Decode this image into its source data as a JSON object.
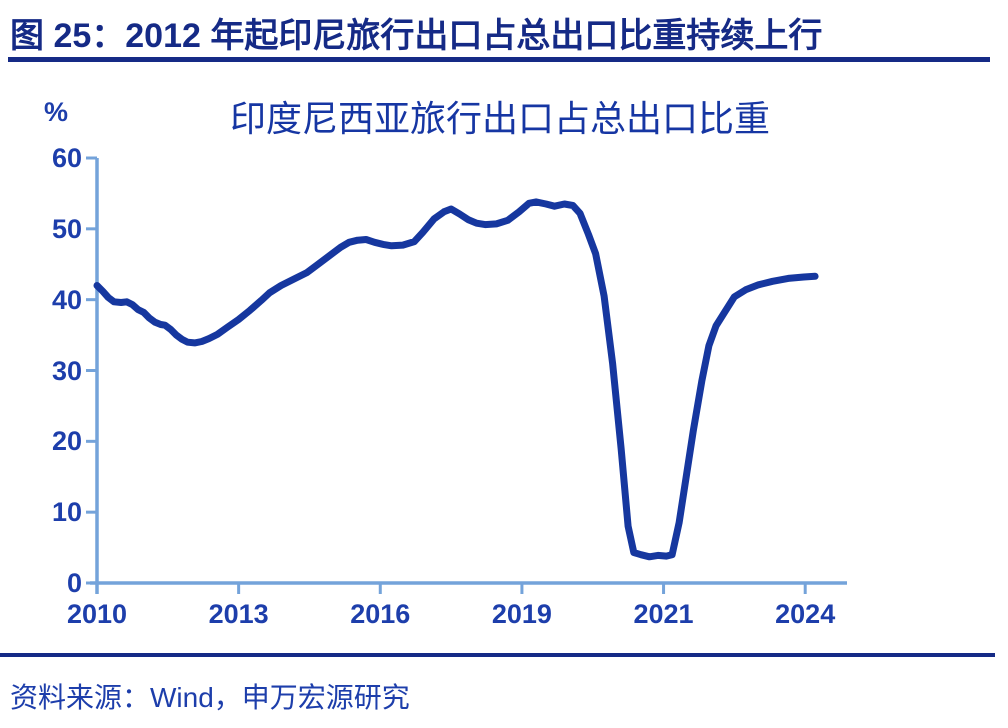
{
  "page": {
    "figure_label": "图 25：2012 年起印尼旅行出口占总出口比重持续上行",
    "source_text": "资料来源：Wind，申万宏源研究"
  },
  "colors": {
    "header_navy": "#152A86",
    "label_blue": "#1D3EAB",
    "title_blue": "#1636A3",
    "line_blue": "#16379F",
    "axis_blue": "#74A3DA",
    "background": "#FFFFFF"
  },
  "chart_data": {
    "type": "line",
    "title": "印度尼西亚旅行出口占总出口比重",
    "unit_label": "%",
    "xlabel": "",
    "ylabel": "%",
    "ylim": [
      0,
      60
    ],
    "grid": false,
    "legend": false,
    "y_axis": {
      "ticks": [
        0,
        10,
        20,
        30,
        40,
        50,
        60
      ]
    },
    "x_axis": {
      "tick_labels": [
        "2010",
        "2013",
        "2016",
        "2019",
        "2021",
        "2024"
      ],
      "tick_units": [
        0,
        1,
        2,
        3,
        4,
        5
      ]
    },
    "series": [
      {
        "name": "印度尼西亚旅行出口占总出口比重",
        "points": [
          [
            0.0,
            42.0
          ],
          [
            0.04,
            41.2
          ],
          [
            0.08,
            40.3
          ],
          [
            0.12,
            39.7
          ],
          [
            0.17,
            39.6
          ],
          [
            0.21,
            39.7
          ],
          [
            0.25,
            39.3
          ],
          [
            0.29,
            38.6
          ],
          [
            0.33,
            38.2
          ],
          [
            0.37,
            37.4
          ],
          [
            0.41,
            36.8
          ],
          [
            0.45,
            36.5
          ],
          [
            0.48,
            36.4
          ],
          [
            0.52,
            35.8
          ],
          [
            0.56,
            35.0
          ],
          [
            0.6,
            34.4
          ],
          [
            0.64,
            34.0
          ],
          [
            0.69,
            33.9
          ],
          [
            0.74,
            34.1
          ],
          [
            0.79,
            34.5
          ],
          [
            0.85,
            35.1
          ],
          [
            0.92,
            36.1
          ],
          [
            1.0,
            37.2
          ],
          [
            1.08,
            38.5
          ],
          [
            1.16,
            39.9
          ],
          [
            1.22,
            41.0
          ],
          [
            1.3,
            42.0
          ],
          [
            1.4,
            43.0
          ],
          [
            1.48,
            43.8
          ],
          [
            1.56,
            45.0
          ],
          [
            1.64,
            46.2
          ],
          [
            1.72,
            47.4
          ],
          [
            1.78,
            48.1
          ],
          [
            1.84,
            48.4
          ],
          [
            1.9,
            48.5
          ],
          [
            1.96,
            48.1
          ],
          [
            2.02,
            47.8
          ],
          [
            2.08,
            47.6
          ],
          [
            2.16,
            47.7
          ],
          [
            2.24,
            48.2
          ],
          [
            2.3,
            49.5
          ],
          [
            2.38,
            51.4
          ],
          [
            2.45,
            52.4
          ],
          [
            2.5,
            52.8
          ],
          [
            2.56,
            52.1
          ],
          [
            2.62,
            51.3
          ],
          [
            2.68,
            50.8
          ],
          [
            2.74,
            50.6
          ],
          [
            2.82,
            50.7
          ],
          [
            2.9,
            51.2
          ],
          [
            2.98,
            52.4
          ],
          [
            3.05,
            53.6
          ],
          [
            3.1,
            53.8
          ],
          [
            3.17,
            53.5
          ],
          [
            3.23,
            53.2
          ],
          [
            3.3,
            53.5
          ],
          [
            3.36,
            53.3
          ],
          [
            3.41,
            52.2
          ],
          [
            3.47,
            49.2
          ],
          [
            3.52,
            46.5
          ],
          [
            3.58,
            40.5
          ],
          [
            3.64,
            31.0
          ],
          [
            3.7,
            19.0
          ],
          [
            3.75,
            8.0
          ],
          [
            3.79,
            4.3
          ],
          [
            3.84,
            4.0
          ],
          [
            3.9,
            3.7
          ],
          [
            3.96,
            3.9
          ],
          [
            4.02,
            3.8
          ],
          [
            4.06,
            4.0
          ],
          [
            4.11,
            8.5
          ],
          [
            4.16,
            15.0
          ],
          [
            4.21,
            21.5
          ],
          [
            4.27,
            28.5
          ],
          [
            4.32,
            33.5
          ],
          [
            4.37,
            36.3
          ],
          [
            4.43,
            38.2
          ],
          [
            4.5,
            40.4
          ],
          [
            4.58,
            41.4
          ],
          [
            4.67,
            42.1
          ],
          [
            4.77,
            42.6
          ],
          [
            4.88,
            43.0
          ],
          [
            4.99,
            43.2
          ],
          [
            5.07,
            43.3
          ]
        ]
      }
    ]
  }
}
